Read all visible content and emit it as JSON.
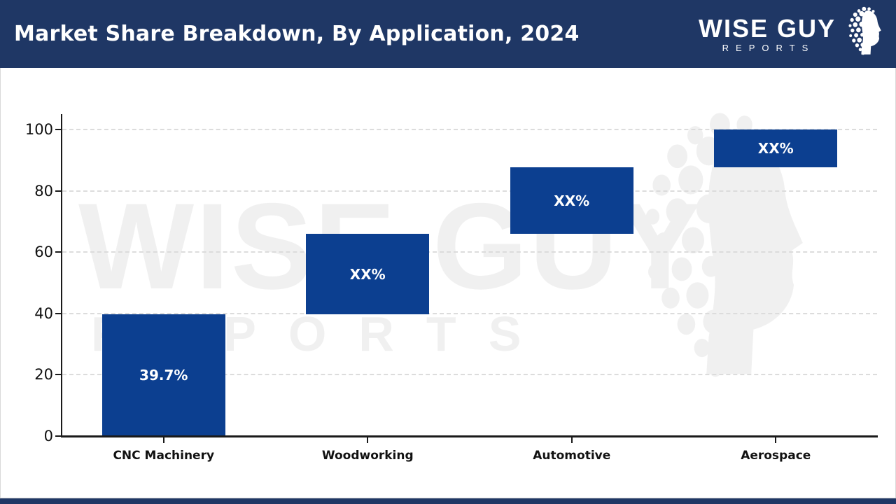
{
  "header": {
    "title": "Market Share Breakdown, By Application, 2024",
    "bg_color": "#1f3765",
    "logo_line1": "WISE GUY",
    "logo_line2": "REPORTS"
  },
  "watermark": {
    "line1": "WISE GUY",
    "line2": "REPORTS"
  },
  "chart_data": {
    "type": "bar",
    "subtype": "waterfall",
    "title": "Market Share Breakdown, By Application, 2024",
    "categories": [
      "CNC Machinery",
      "Woodworking",
      "Automotive",
      "Aerospace"
    ],
    "segments": [
      {
        "category": "CNC Machinery",
        "start": 0,
        "end": 39.7,
        "label": "39.7%"
      },
      {
        "category": "Woodworking",
        "start": 39.7,
        "end": 65.9,
        "label": "XX%"
      },
      {
        "category": "Automotive",
        "start": 65.9,
        "end": 87.6,
        "label": "XX%"
      },
      {
        "category": "Aerospace",
        "start": 87.6,
        "end": 100,
        "label": "XX%"
      }
    ],
    "ylim": [
      0,
      100
    ],
    "yticks": [
      0,
      20,
      40,
      60,
      80,
      100
    ],
    "ytick_labels": [
      "0",
      "20",
      "40",
      "60",
      "80",
      "100"
    ],
    "grid": "horizontal-dashed",
    "legend": "none",
    "bar_color": "#0c3f90",
    "bar_label_color": "#ffffff",
    "axis_color": "#1a1a1a",
    "grid_color": "#dcdcdc"
  }
}
